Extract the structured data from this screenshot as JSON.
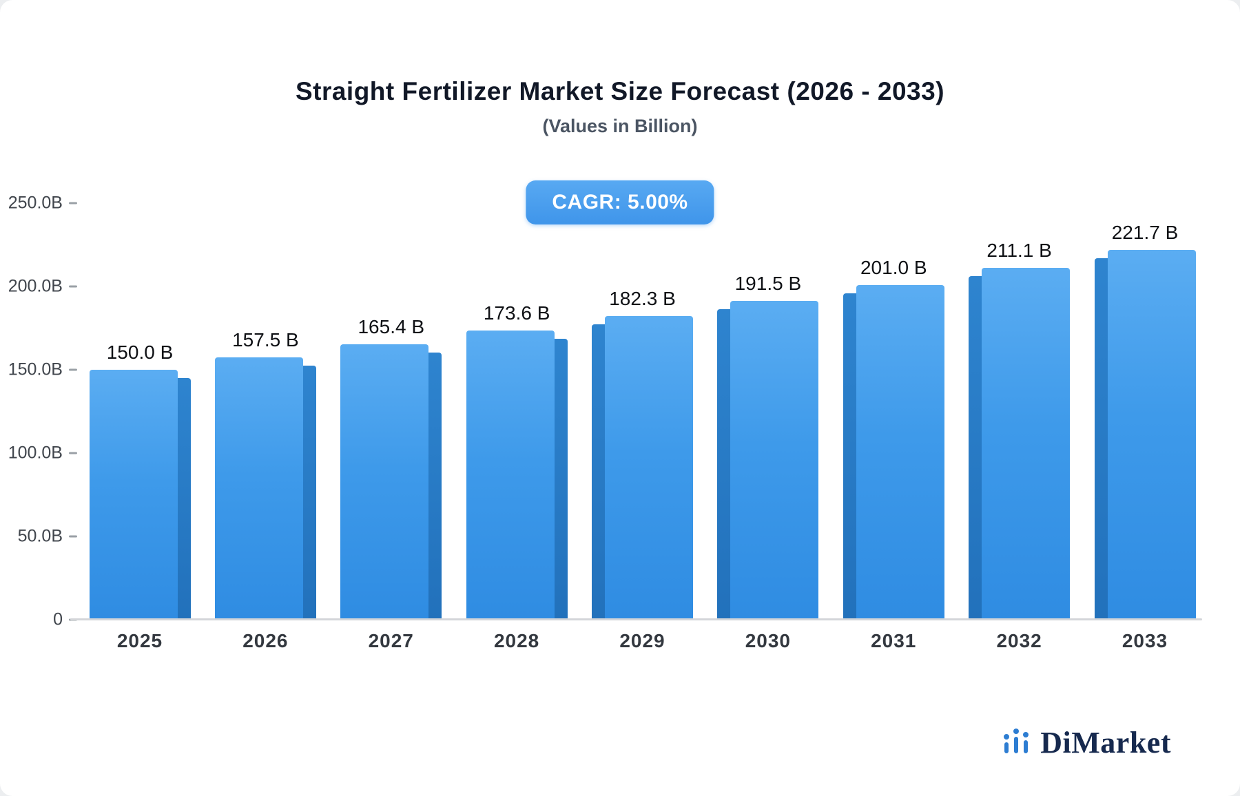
{
  "header": {
    "title": "Straight Fertilizer Market Size Forecast (2026 - 2033)",
    "subtitle": "(Values in Billion)",
    "cagr_label": "CAGR: 5.00%"
  },
  "brand": {
    "name": "DiMarket",
    "icon": "bar-chart-icon",
    "icon_color": "#2d7dd2",
    "text_color": "#16294e"
  },
  "colors": {
    "bar_top": "#5badf2",
    "bar_bottom": "#2f8ce2",
    "bar_edge": "#2271bb",
    "badge": "#3f95ea",
    "axis_line": "#d4d6d9"
  },
  "chart_data": {
    "type": "bar",
    "title": "Straight Fertilizer Market Size Forecast (2026 - 2033)",
    "subtitle": "(Values in Billion)",
    "categories": [
      "2025",
      "2026",
      "2027",
      "2028",
      "2029",
      "2030",
      "2031",
      "2032",
      "2033"
    ],
    "values": [
      150.0,
      157.5,
      165.4,
      173.6,
      182.3,
      191.5,
      201.0,
      211.1,
      221.7
    ],
    "value_labels": [
      "150.0 B",
      "157.5 B",
      "165.4 B",
      "173.6 B",
      "182.3 B",
      "191.5 B",
      "201.0 B",
      "211.1 B",
      "221.7 B"
    ],
    "xlabel": "",
    "ylabel": "",
    "ylim": [
      0,
      250
    ],
    "y_ticks": [
      {
        "label": "250.0B",
        "value": 250
      },
      {
        "label": "200.0B",
        "value": 200
      },
      {
        "label": "150.0B",
        "value": 150
      },
      {
        "label": "100.0B",
        "value": 100
      },
      {
        "label": "50.0B",
        "value": 50
      },
      {
        "label": "0",
        "value": 0
      }
    ],
    "legend": "none",
    "grid": "off",
    "cagr": "5.00%"
  }
}
